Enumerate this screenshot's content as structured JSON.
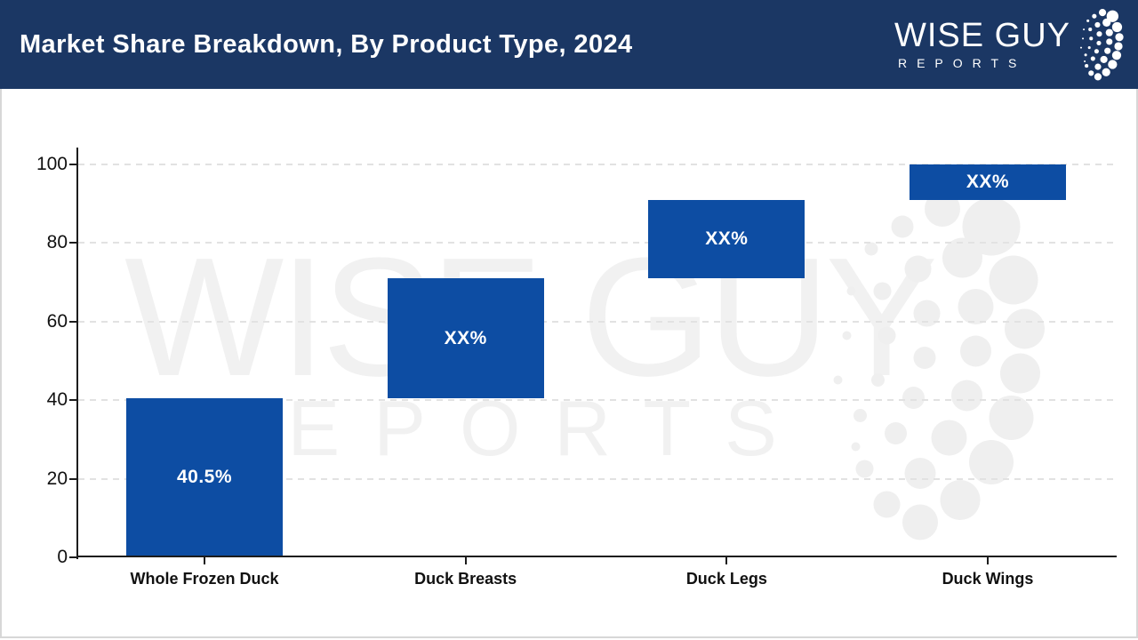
{
  "header": {
    "title": "Market Share Breakdown, By Product Type, 2024"
  },
  "logo": {
    "title": "WISE GUY",
    "subtitle": "REPORTS"
  },
  "watermark": {
    "title": "WISE GUY",
    "subtitle": "REPORTS"
  },
  "icons": {
    "logo_face": "dotted-head-profile-icon",
    "watermark_face": "dotted-head-profile-icon"
  },
  "colors": {
    "header_bg": "#1b3764",
    "bar": "#0d4da3",
    "bar_label": "#ffffff",
    "grid": "#e2e2e2",
    "axis": "#1c1c1c",
    "watermark": "#f1f1f1",
    "border": "#d7d7d7"
  },
  "chart_data": {
    "type": "bar",
    "subtype": "floating-waterfall",
    "title": "Market Share Breakdown, By Product Type, 2024",
    "xlabel": "",
    "ylabel": "",
    "ylim": [
      0,
      105
    ],
    "y_ticks": [
      0,
      20,
      40,
      60,
      80,
      100
    ],
    "grid": "horizontal-dashed",
    "legend": "none",
    "bar_color": "#0d4da3",
    "label_color": "#ffffff",
    "categories": [
      "Whole Frozen Duck",
      "Duck Breasts",
      "Duck Legs",
      "Duck Wings"
    ],
    "series": [
      {
        "name": "Market Share (%)",
        "segments": [
          {
            "category": "Whole Frozen Duck",
            "start": 0,
            "end": 40.5,
            "label": "40.5%"
          },
          {
            "category": "Duck Breasts",
            "start": 40.5,
            "end": 71,
            "label": "XX%"
          },
          {
            "category": "Duck Legs",
            "start": 71,
            "end": 91,
            "label": "XX%"
          },
          {
            "category": "Duck Wings",
            "start": 91,
            "end": 100,
            "label": "XX%"
          }
        ]
      }
    ]
  }
}
